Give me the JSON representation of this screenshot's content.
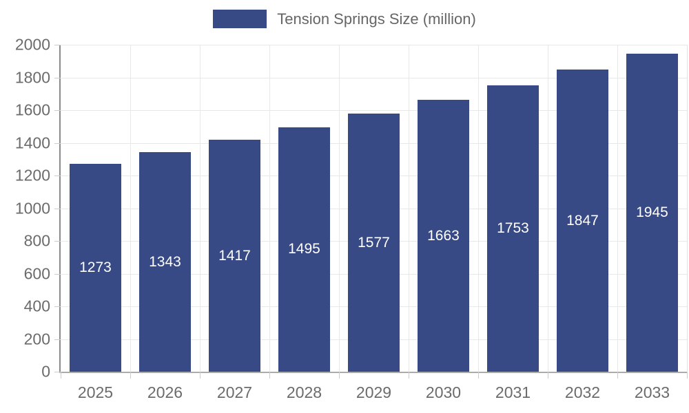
{
  "legend": {
    "label": "Tension Springs Size (million)"
  },
  "chart_data": {
    "type": "bar",
    "title": "",
    "xlabel": "",
    "ylabel": "",
    "categories": [
      "2025",
      "2026",
      "2027",
      "2028",
      "2029",
      "2030",
      "2031",
      "2032",
      "2033"
    ],
    "series": [
      {
        "name": "Tension Springs Size (million)",
        "values": [
          1273,
          1343,
          1417,
          1495,
          1577,
          1663,
          1753,
          1847,
          1945
        ]
      }
    ],
    "bar_labels": [
      "1273",
      "1343",
      "1417",
      "1495",
      "1577",
      "1663",
      "1753",
      "1847",
      "1945"
    ],
    "ylim": [
      0,
      2000
    ],
    "yticks": [
      0,
      200,
      400,
      600,
      800,
      1000,
      1200,
      1400,
      1600,
      1800,
      2000
    ],
    "grid": true,
    "legend_position": "top-center",
    "colors": {
      "bar": "#384a85",
      "bar_label": "#ffffff",
      "axis_text": "#6b6b6d",
      "legend_text": "#666668",
      "gridline": "#e8e8e8"
    }
  }
}
